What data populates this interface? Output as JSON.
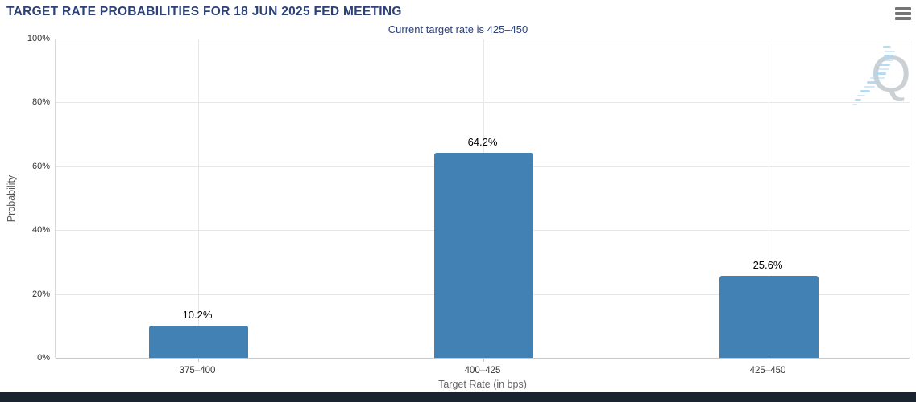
{
  "header": {
    "menu_icon": "hamburger-menu-icon"
  },
  "chart_data": {
    "type": "bar",
    "title": "TARGET RATE PROBABILITIES FOR 18 JUN 2025 FED MEETING",
    "subtitle": "Current target rate is 425–450",
    "categories": [
      "375–400",
      "400–425",
      "425–450"
    ],
    "values": [
      10.2,
      64.2,
      25.6
    ],
    "value_labels": [
      "10.2%",
      "64.2%",
      "25.6%"
    ],
    "xlabel": "Target Rate (in bps)",
    "ylabel": "Probability",
    "ylim": [
      0,
      100
    ],
    "ytick_labels": [
      "0%",
      "20%",
      "40%",
      "60%",
      "80%",
      "100%"
    ],
    "ytick_values": [
      0,
      20,
      40,
      60,
      80,
      100
    ],
    "grid": true,
    "legend": "none",
    "watermark": "Q",
    "colors": {
      "bar": "#4181b4",
      "title": "#2b4178",
      "watermark": "#cbd0d4",
      "watermark_dash": "#aed7f0",
      "bottom_bar": "#1a2330"
    }
  }
}
